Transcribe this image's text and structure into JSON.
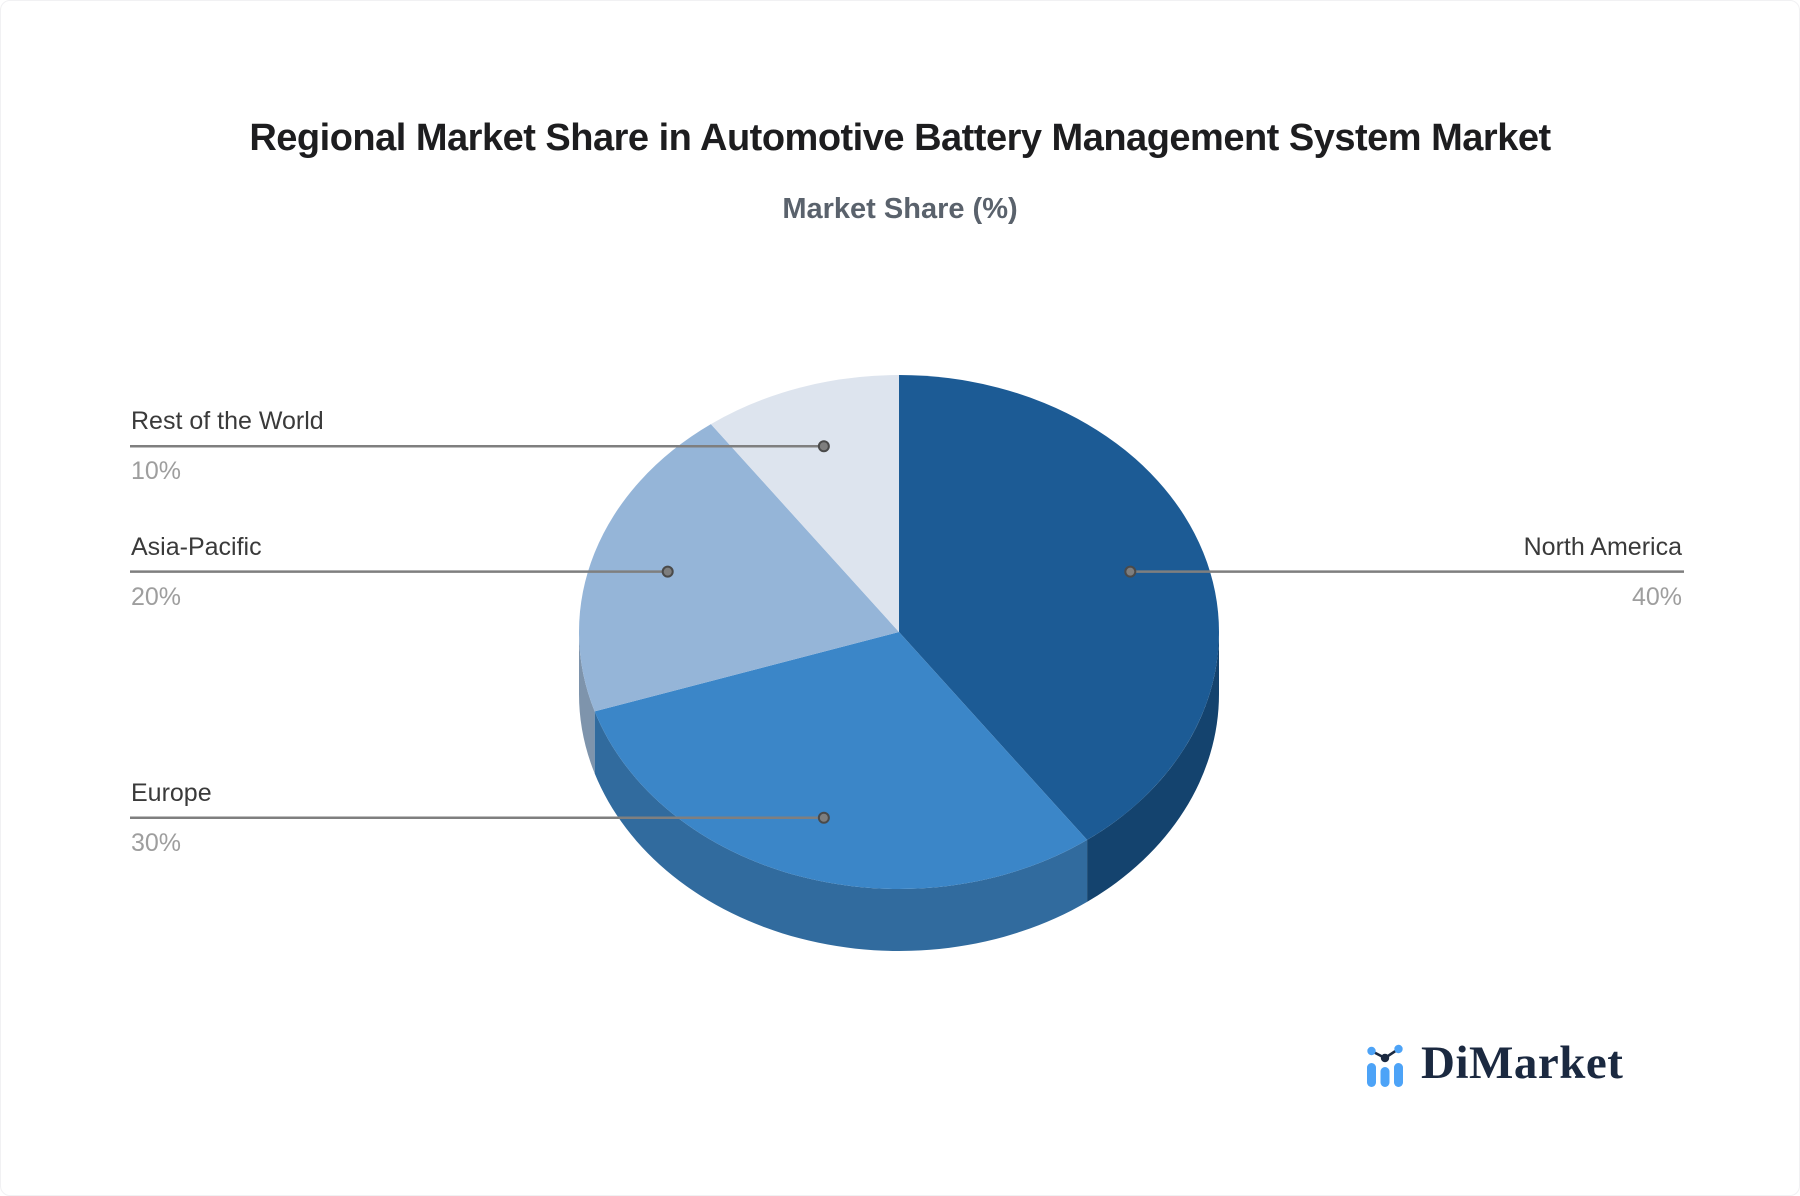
{
  "header": {
    "title": "Regional Market Share in Automotive Battery Management System Market",
    "subtitle": "Market Share (%)"
  },
  "chart_data": {
    "type": "pie",
    "style": "3d-extruded",
    "title": "Regional Market Share in Automotive Battery Management System Market",
    "subtitle": "Market Share (%)",
    "unit": "%",
    "start_angle_deg": 0,
    "direction": "clockwise",
    "legend_position": "callout-labels",
    "labels": [
      "North America",
      "Europe",
      "Asia-Pacific",
      "Rest of the World"
    ],
    "values": [
      40,
      30,
      20,
      10
    ],
    "slices": [
      {
        "label": "North America",
        "value": 40,
        "display": "40%",
        "color": "#1C5B95",
        "side_color": "#14436E",
        "callout_side": "right"
      },
      {
        "label": "Europe",
        "value": 30,
        "display": "30%",
        "color": "#3B86C8",
        "side_color": "#316B9E",
        "callout_side": "left"
      },
      {
        "label": "Asia-Pacific",
        "value": 20,
        "display": "20%",
        "color": "#95B5D8",
        "side_color": "#7E94AC",
        "callout_side": "left"
      },
      {
        "label": "Rest of the World",
        "value": 10,
        "display": "10%",
        "color": "#DDE4EE",
        "side_color": "#B9C2D1",
        "callout_side": "left"
      }
    ],
    "callout_line_color": "#7f7f7f",
    "callout_dot_fill": "#7e7e7e",
    "callout_dot_stroke": "#4a4a4a",
    "label_color": "#3a3a3a",
    "value_color": "#9e9e9e"
  },
  "logo": {
    "text": "DiMarket",
    "icon": "bar-line-chart-icon",
    "text_color": "#1b2940",
    "bar_color": "#4DA3F7",
    "accent_color": "#1b2940"
  }
}
